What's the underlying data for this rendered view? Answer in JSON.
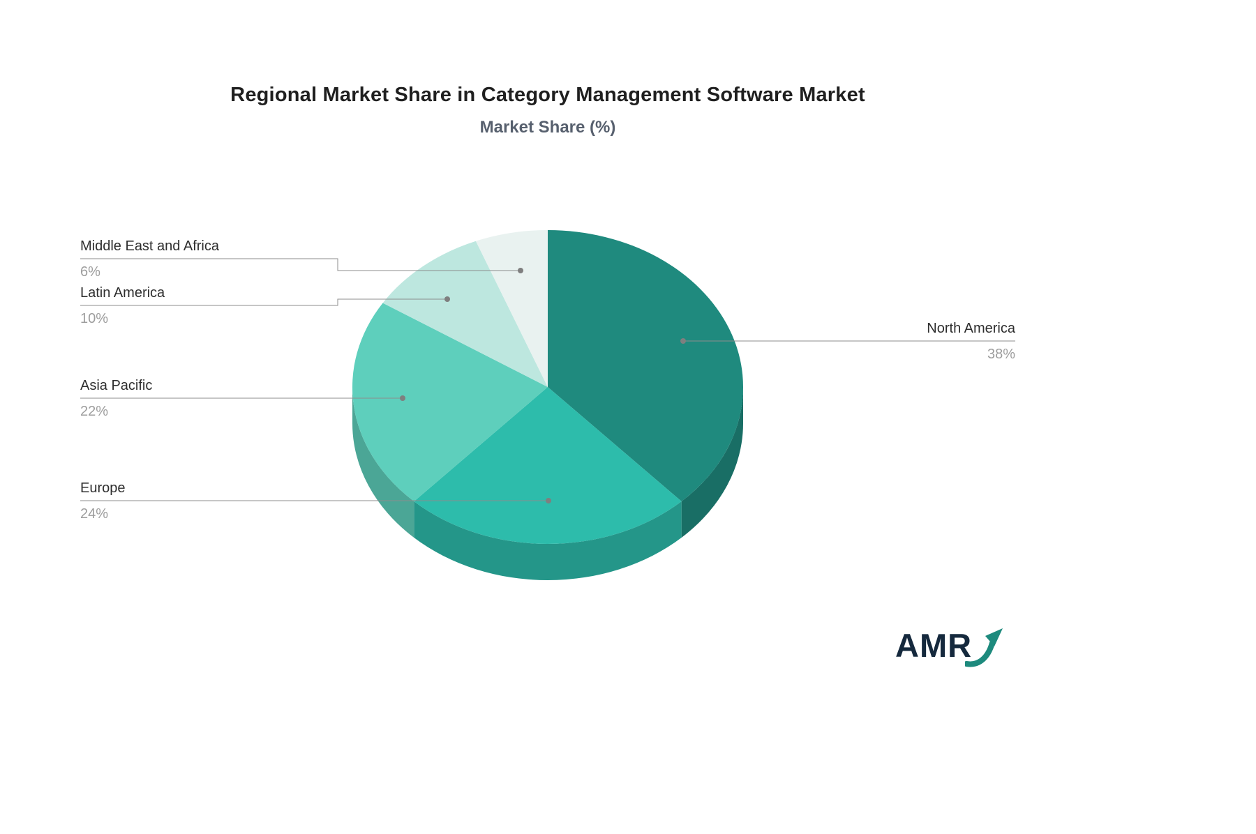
{
  "chart_data": {
    "type": "pie",
    "title": "Regional Market Share in Category Management Software Market",
    "subtitle": "Market Share (%)",
    "unit": "%",
    "start_angle_deg": 0,
    "direction": "clockwise",
    "legend_position": "callout-labels",
    "style": "3d-pie",
    "slices": [
      {
        "label": "North America",
        "value": 38,
        "pct_label": "38%",
        "color": "#1f8a7e"
      },
      {
        "label": "Europe",
        "value": 24,
        "pct_label": "24%",
        "color": "#2dbcab"
      },
      {
        "label": "Asia Pacific",
        "value": 22,
        "pct_label": "22%",
        "color": "#5ecfbc"
      },
      {
        "label": "Latin America",
        "value": 10,
        "pct_label": "10%",
        "color": "#bde7df"
      },
      {
        "label": "Middle East and Africa",
        "value": 6,
        "pct_label": "6%",
        "color": "#e9f2f0"
      }
    ],
    "leader_line_color": "#8c8c8c"
  },
  "logo": {
    "text": "AMR",
    "arrow_color": "#1d8a7d"
  }
}
